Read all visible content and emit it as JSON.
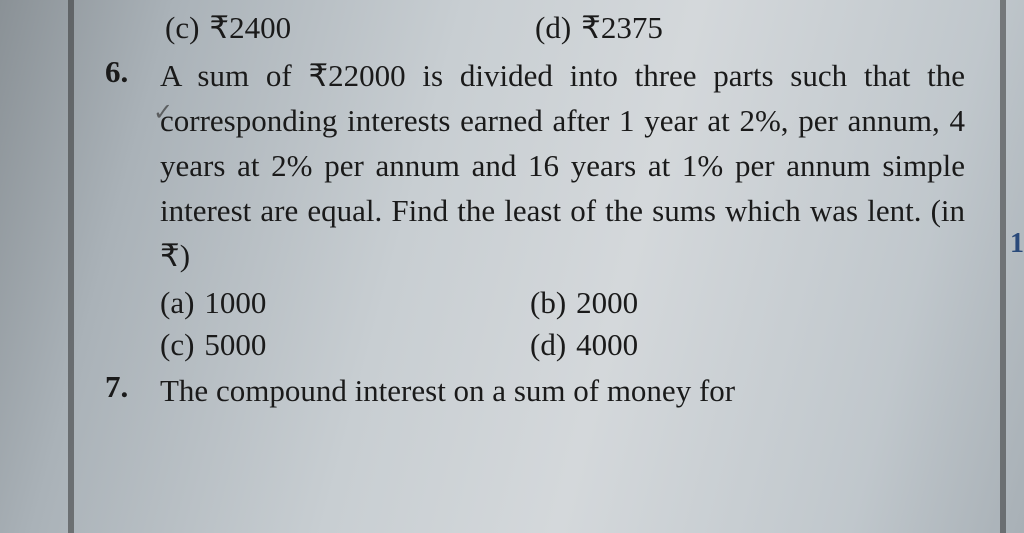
{
  "prev_options": {
    "c_label": "(c)",
    "c_value": "₹2400",
    "d_label": "(d)",
    "d_value": "₹2375"
  },
  "question6": {
    "number": "6.",
    "text": "A sum of ₹22000 is divided into three parts such that the corresponding interests earned after 1 year at 2%, per annum, 4 years at 2% per annum and 16 years at 1% per annum simple interest are equal. Find the least of the sums which was lent. (in ₹)",
    "options": {
      "a_label": "(a)",
      "a_value": "1000",
      "b_label": "(b)",
      "b_value": "2000",
      "c_label": "(c)",
      "c_value": "5000",
      "d_label": "(d)",
      "d_value": "4000"
    }
  },
  "question7": {
    "number": "7.",
    "text": "The compound interest on a sum of money for"
  },
  "side_annotation": "1"
}
